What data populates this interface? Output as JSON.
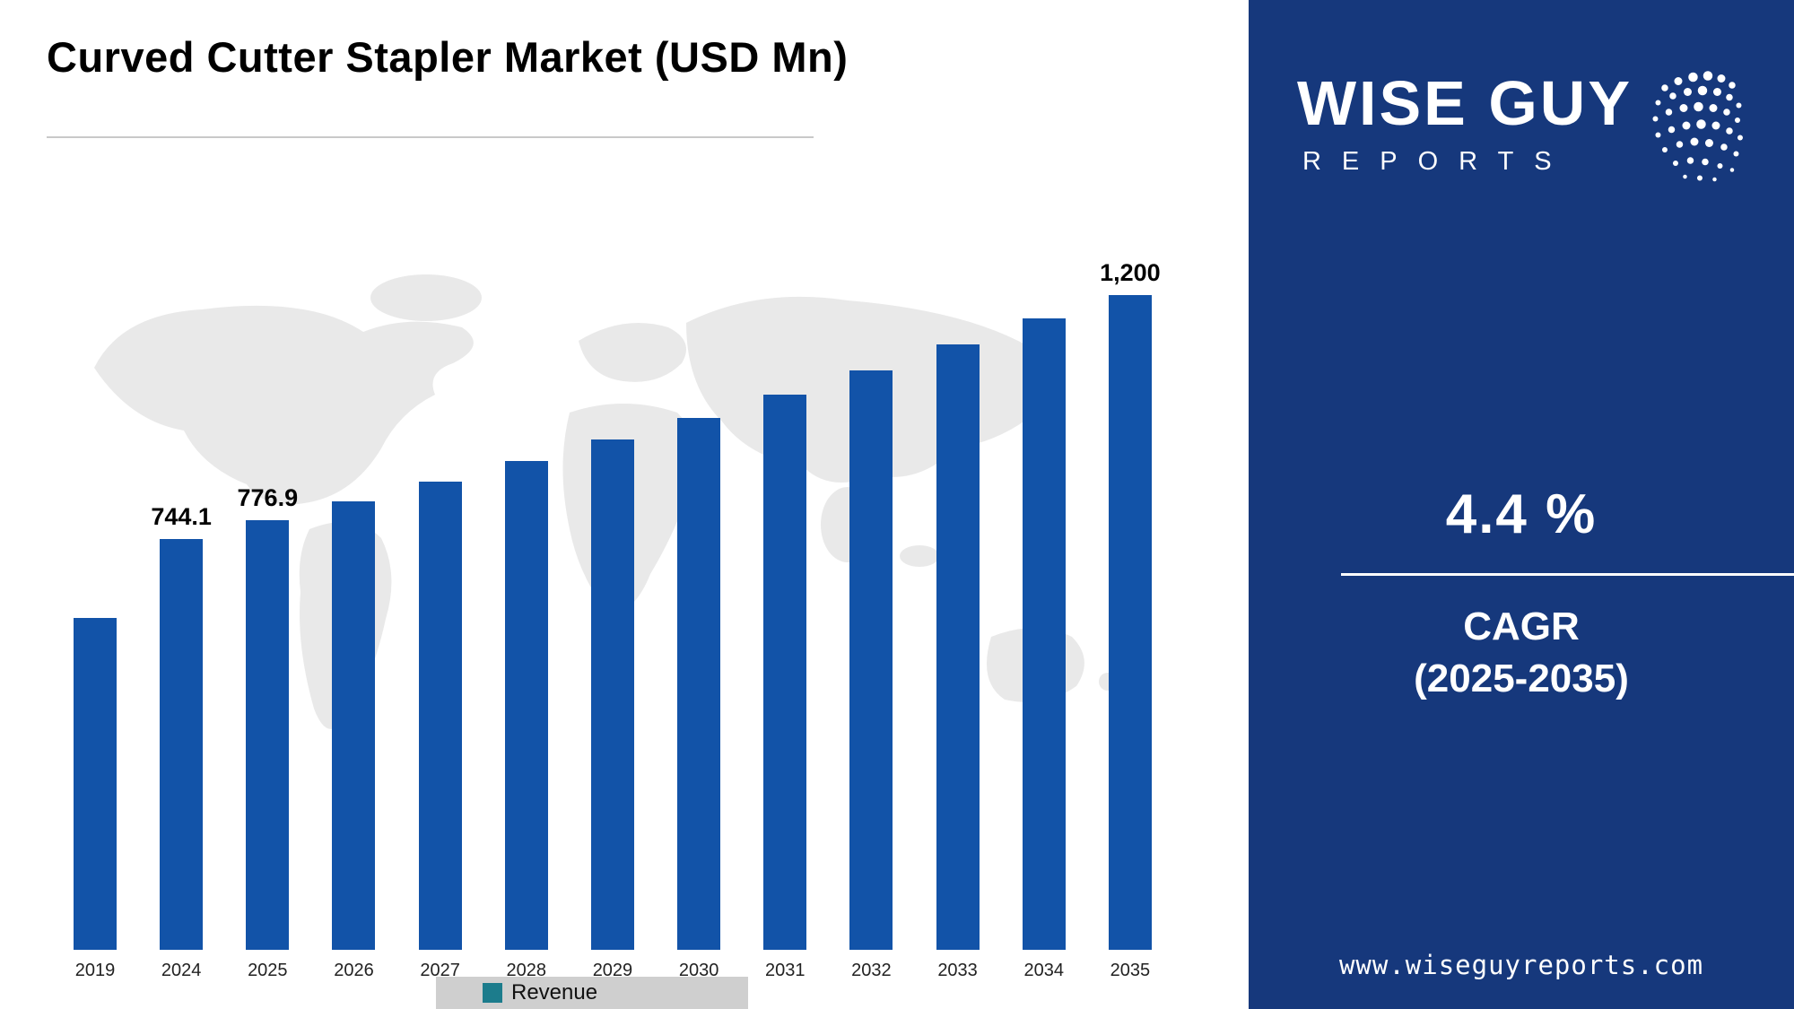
{
  "title": "Curved Cutter Stapler Market (USD Mn)",
  "chart_data": {
    "type": "bar",
    "title": "Curved Cutter Stapler Market (USD Mn)",
    "categories": [
      "2019",
      "2024",
      "2025",
      "2026",
      "2027",
      "2028",
      "2029",
      "2030",
      "2031",
      "2032",
      "2033",
      "2034",
      "2035"
    ],
    "values": [
      600,
      744.1,
      776.9,
      811,
      847,
      884,
      923,
      963,
      1005,
      1049,
      1095,
      1143,
      1200
    ],
    "bar_labels": [
      "",
      "744.1",
      "776.9",
      "",
      "",
      "",
      "",
      "",
      "",
      "",
      "",
      "",
      "1,200"
    ],
    "bar_color": "#1253a8",
    "ylim": [
      0,
      1250
    ],
    "grid": false,
    "xlabel": "",
    "ylabel": "",
    "legend": {
      "label": "Revenue",
      "color": "#1c7c8c",
      "position": "bottom"
    }
  },
  "side_panel": {
    "bg_color": "#16387c",
    "logo_line1": "WISE GUY",
    "logo_line2": "REPORTS",
    "cagr_value": "4.4 %",
    "cagr_label": "CAGR",
    "cagr_range": "(2025-2035)",
    "website": "www.wiseguyreports.com"
  }
}
